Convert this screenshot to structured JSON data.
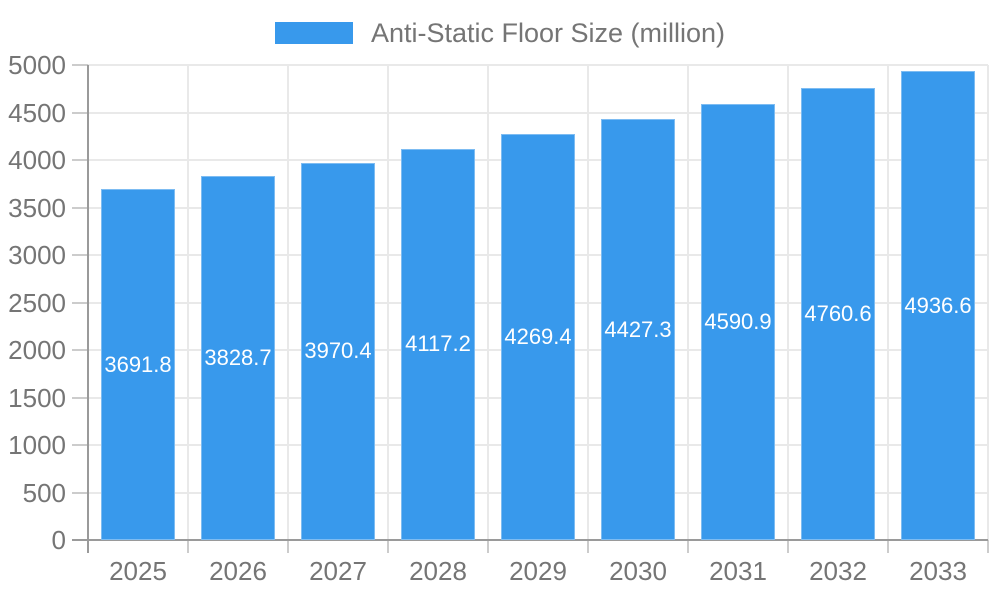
{
  "legend": {
    "label": "Anti-Static Floor Size (million)"
  },
  "chart_data": {
    "type": "bar",
    "title": "Anti-Static Floor Size (million)",
    "series_name": "Anti-Static Floor Size (million)",
    "categories": [
      "2025",
      "2026",
      "2027",
      "2028",
      "2029",
      "2030",
      "2031",
      "2032",
      "2033"
    ],
    "values": [
      3691.8,
      3828.7,
      3970.4,
      4117.2,
      4269.4,
      4427.3,
      4590.9,
      4760.6,
      4936.6
    ],
    "value_labels": [
      "3691.8",
      "3828.7",
      "3970.4",
      "4117.2",
      "4269.4",
      "4427.3",
      "4590.9",
      "4760.6",
      "4936.6"
    ],
    "xlabel": "",
    "ylabel": "",
    "ylim": [
      0,
      5000
    ],
    "y_ticks": [
      0,
      500,
      1000,
      1500,
      2000,
      2500,
      3000,
      3500,
      4000,
      4500,
      5000
    ],
    "grid": true,
    "legend_position": "top-center",
    "colors": {
      "bar": "#3899EC",
      "axis": "#9a9a9a",
      "grid": "#e9e9e9",
      "tick": "#cccccc",
      "tick_label": "#757575",
      "legend_text": "#757575",
      "value_label": "#ffffff",
      "background": "#ffffff"
    }
  }
}
